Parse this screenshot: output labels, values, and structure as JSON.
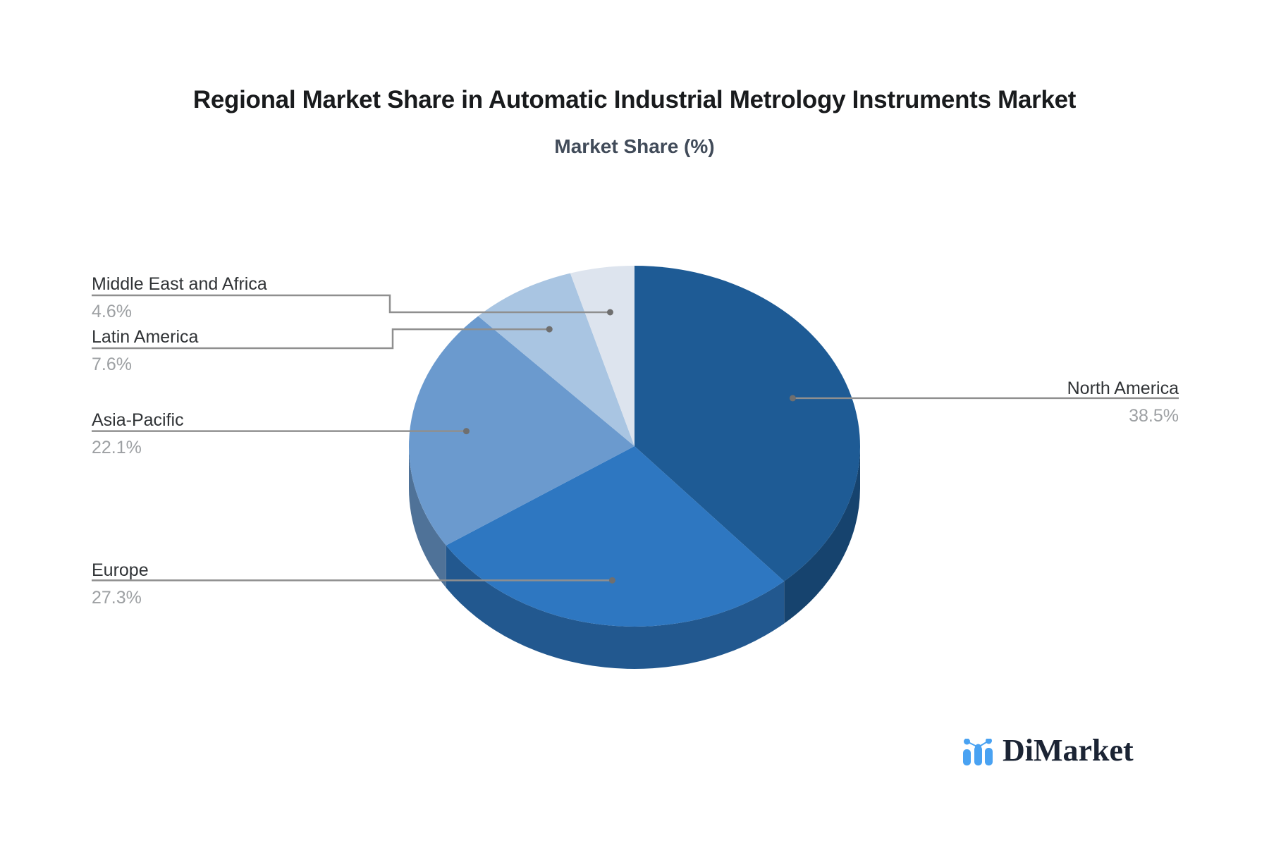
{
  "header": {
    "title": "Regional Market Share in Automatic Industrial Metrology Instruments Market",
    "subtitle": "Market Share (%)"
  },
  "chart_data": {
    "type": "pie",
    "title": "Regional Market Share in Automatic Industrial Metrology Instruments Market",
    "subtitle": "Market Share (%)",
    "unit": "%",
    "effect": "3d",
    "start_angle_deg": 0,
    "direction": "clockwise",
    "slices": [
      {
        "label": "North America",
        "value": 38.5,
        "display": "38.5%",
        "color": "#1e5b95"
      },
      {
        "label": "Europe",
        "value": 27.3,
        "display": "27.3%",
        "color": "#2e77c1"
      },
      {
        "label": "Asia-Pacific",
        "value": 22.1,
        "display": "22.1%",
        "color": "#6b9ace"
      },
      {
        "label": "Latin America",
        "value": 7.6,
        "display": "7.6%",
        "color": "#a9c5e2"
      },
      {
        "label": "Middle East and Africa",
        "value": 4.6,
        "display": "4.6%",
        "color": "#dde4ee"
      }
    ],
    "leader_line_color": "#8f8f8f",
    "label_color": "#303336",
    "value_color": "#9da0a3"
  },
  "branding": {
    "logo_text": "DiMarket"
  }
}
